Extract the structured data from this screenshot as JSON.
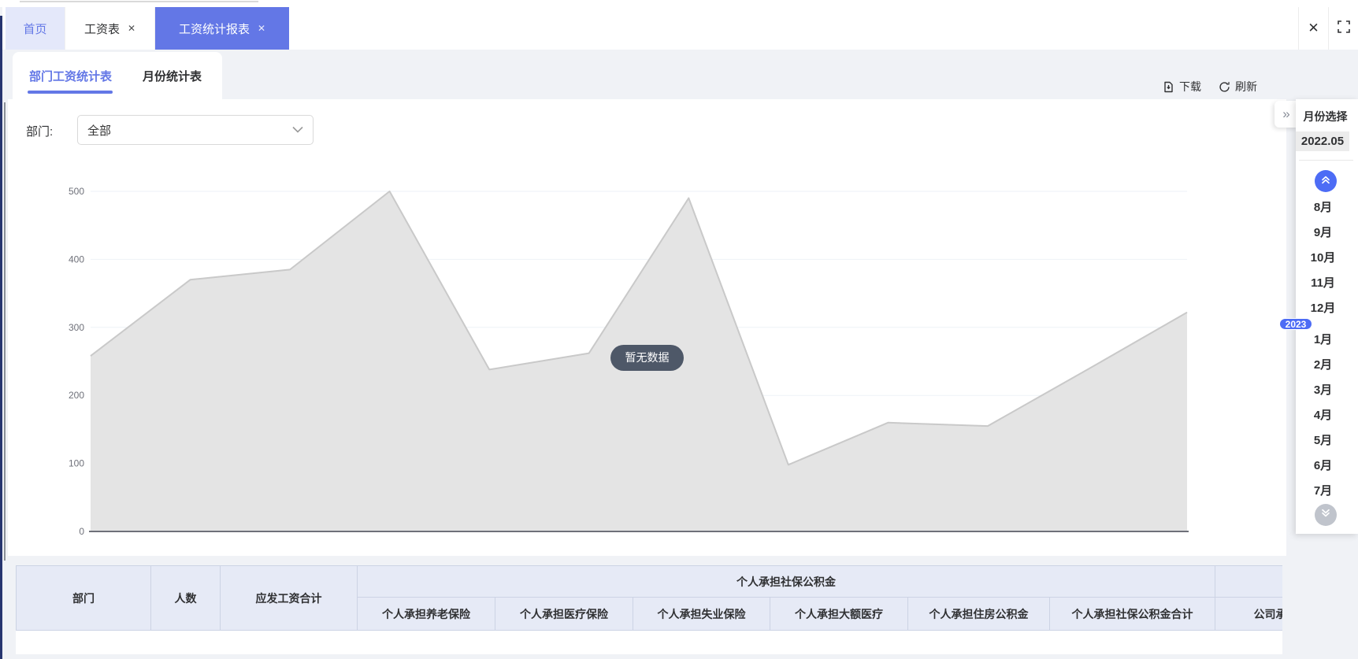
{
  "theme": {
    "accent": "#6377e6",
    "accent_bright": "#4d6cf5",
    "table_header_bg": "#e6eaf6",
    "page_bg": "#f0f2f6"
  },
  "tabs": {
    "home": "首页",
    "payroll": "工资表",
    "report": "工资统计报表",
    "close_glyph": "✕"
  },
  "window_controls": {
    "close_glyph": "✕"
  },
  "subtabs": {
    "dept": "部门工资统计表",
    "month": "月份统计表"
  },
  "toolbar": {
    "download": "下载",
    "refresh": "刷新"
  },
  "filter": {
    "label": "部门:",
    "value": "全部"
  },
  "chart_data": {
    "type": "area",
    "title": "",
    "xlabel": "",
    "ylabel": "",
    "values": [
      258,
      370,
      385,
      500,
      238,
      262,
      490,
      98,
      160,
      155,
      238,
      322
    ],
    "yticks": [
      0,
      100,
      200,
      300,
      400,
      500
    ],
    "ylim": [
      0,
      500
    ],
    "grid": true,
    "legend": "none",
    "series_color": "#e4e4e4",
    "line_color": "#c9c9c9",
    "axis_color": "#6e7079",
    "no_data_label": "暂无数据"
  },
  "month_panel": {
    "collapse_glyph": "»",
    "title": "月份选择",
    "selected": "2022.05",
    "months_2022": [
      "8月",
      "9月",
      "10月",
      "11月",
      "12月"
    ],
    "year_badge": "2023",
    "months_2023": [
      "1月",
      "2月",
      "3月",
      "4月",
      "5月",
      "6月",
      "7月"
    ]
  },
  "table": {
    "col_dept": "部门",
    "col_headcount": "人数",
    "col_gross_total": "应发工资合计",
    "group_personal": "个人承担社保公积金",
    "sub_columns": [
      "个人承担养老保险",
      "个人承担医疗保险",
      "个人承担失业保险",
      "个人承担大额医疗",
      "个人承担住房公积金",
      "个人承担社保公积金合计"
    ],
    "col_company_pension": "公司承担养老保险"
  }
}
